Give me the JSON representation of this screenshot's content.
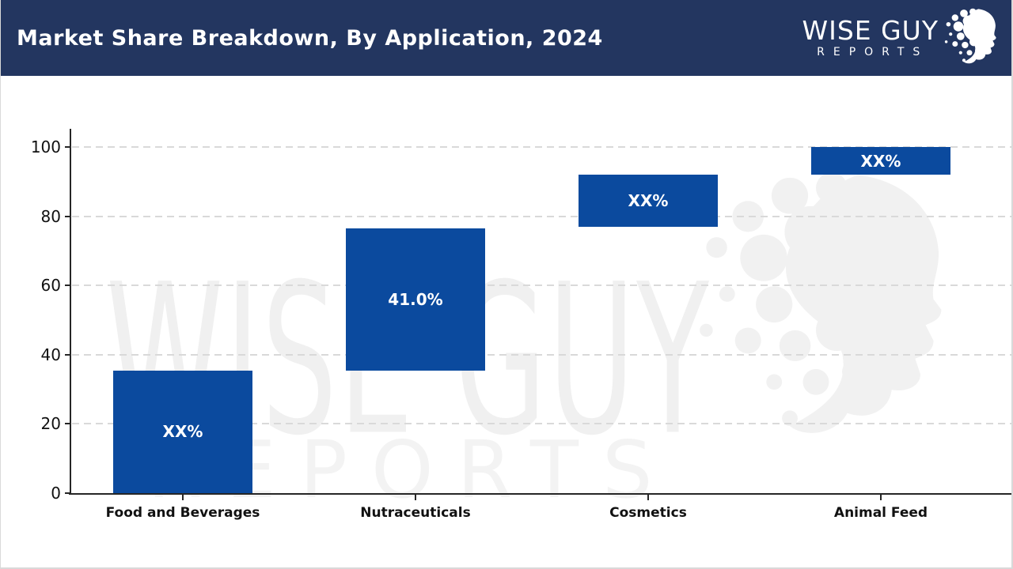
{
  "page": {
    "background": "#ffffff",
    "border_color": "#d9d9d9"
  },
  "header": {
    "background": "#233660",
    "title": "Market Share Breakdown, By Application, 2024",
    "logo": {
      "name": "WISE GUY",
      "sub": "REPORTS"
    }
  },
  "watermark": {
    "name": "WISE GUY",
    "sub": "REPORTS"
  },
  "chart_data": {
    "type": "bar",
    "variant": "waterfall",
    "title": "Market Share Breakdown, By Application, 2024",
    "categories": [
      "Food and Beverages",
      "Nutraceuticals",
      "Cosmetics",
      "Animal Feed"
    ],
    "series": [
      {
        "name": "Market share (%)",
        "segments": [
          {
            "category": "Food and Beverages",
            "start": 0,
            "end": 35.5,
            "label": "XX%"
          },
          {
            "category": "Nutraceuticals",
            "start": 35.5,
            "end": 76.5,
            "label": "41.0%",
            "shown_value": 41.0
          },
          {
            "category": "Cosmetics",
            "start": 77,
            "end": 92,
            "label": "XX%"
          },
          {
            "category": "Animal Feed",
            "start": 92,
            "end": 100,
            "label": "XX%"
          }
        ]
      }
    ],
    "xlabel": "",
    "ylabel": "",
    "yticks": [
      0,
      20,
      40,
      60,
      80,
      100
    ],
    "ylim": [
      0,
      105
    ],
    "grid": "horizontal-dashed",
    "legend": "none",
    "colors": {
      "bar": "#0b4a9e",
      "bar_label": "#ffffff",
      "axis": "#262626",
      "gridline": "#d9d9d9",
      "tick_label": "#111111"
    }
  }
}
